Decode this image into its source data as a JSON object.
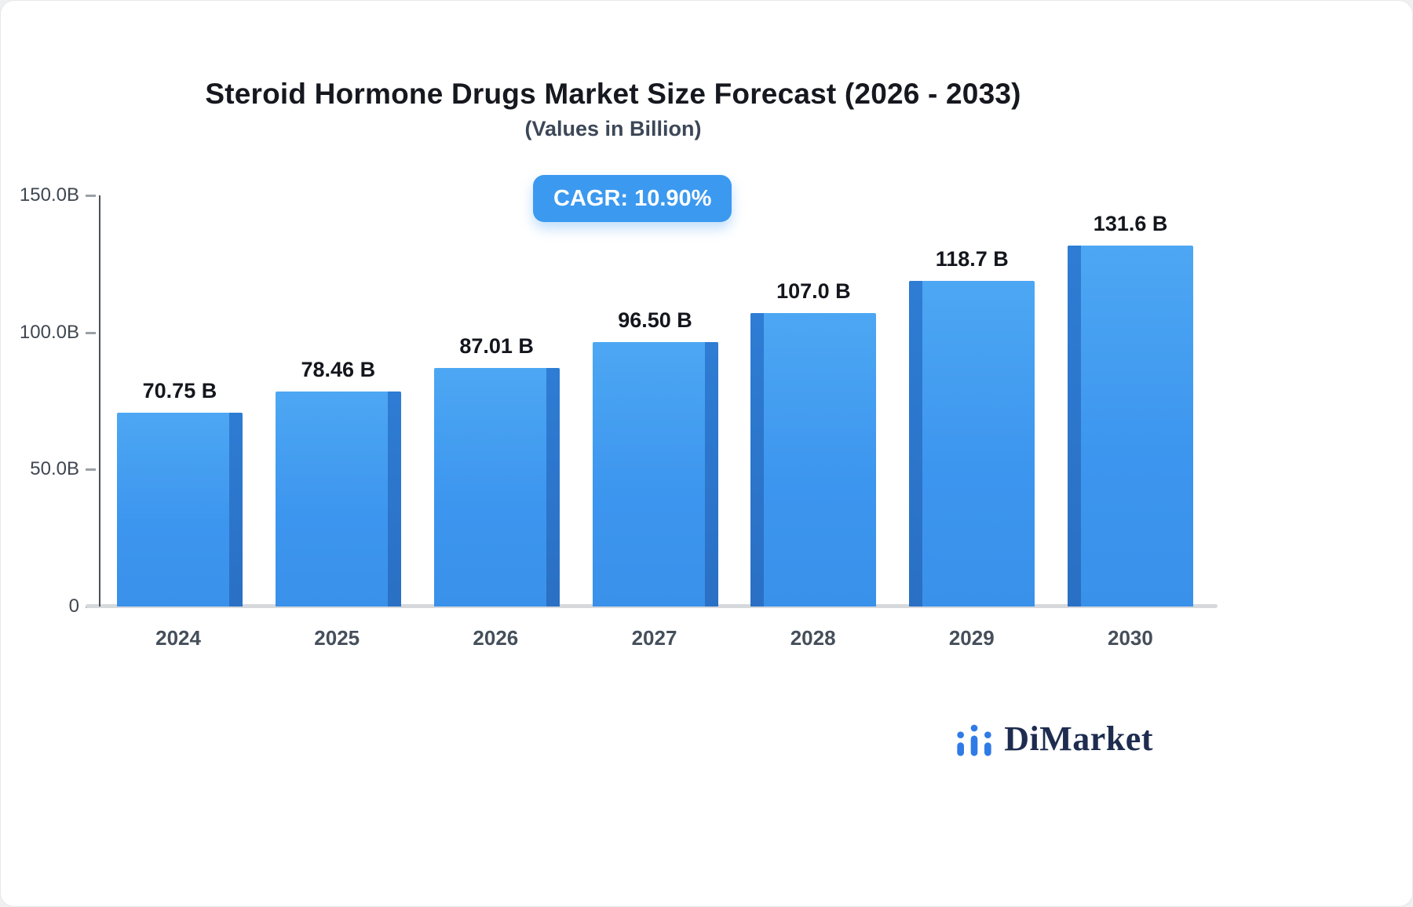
{
  "title": "Steroid Hormone Drugs Market Size Forecast (2026 - 2033)",
  "subtitle": "(Values in Billion)",
  "cagr_label": "CAGR: 10.90%",
  "logo": {
    "text": "DiMarket"
  },
  "colors": {
    "bar_front": "#3c95ee",
    "bar_side": "#2b72c8",
    "cagr_badge": "#3b99f0",
    "logo_navy": "#1d2c4f",
    "logo_icon_blue": "#2f7be6"
  },
  "chart_data": {
    "type": "bar",
    "categories": [
      "2024",
      "2025",
      "2026",
      "2027",
      "2028",
      "2029",
      "2030"
    ],
    "values": [
      70.75,
      78.46,
      87.01,
      96.5,
      107.0,
      118.7,
      131.6
    ],
    "labels": [
      "70.75 B",
      "78.46 B",
      "87.01 B",
      "96.50 B",
      "107.0 B",
      "118.7 B",
      "131.6 B"
    ],
    "title": "Steroid Hormone Drugs Market Size Forecast (2026 - 2033)",
    "subtitle": "(Values in Billion)",
    "xlabel": "",
    "ylabel": "",
    "ylim": [
      0,
      150
    ],
    "grid": false,
    "legend": false,
    "yticks": [
      {
        "value": 0,
        "label": "0"
      },
      {
        "value": 50,
        "label": "50.0B"
      },
      {
        "value": 100,
        "label": "100.0B"
      },
      {
        "value": 150,
        "label": "150.0B"
      }
    ]
  }
}
